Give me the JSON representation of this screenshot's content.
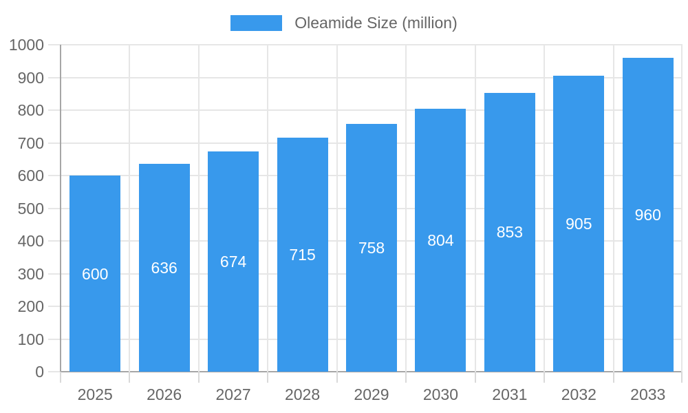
{
  "chart_data": {
    "type": "bar",
    "legend": {
      "label": "Oleamide Size (million)",
      "position": "top"
    },
    "categories": [
      "2025",
      "2026",
      "2027",
      "2028",
      "2029",
      "2030",
      "2031",
      "2032",
      "2033"
    ],
    "series": [
      {
        "name": "Oleamide Size (million)",
        "values": [
          600,
          636,
          674,
          715,
          758,
          804,
          853,
          905,
          960
        ]
      }
    ],
    "title": "",
    "xlabel": "",
    "ylabel": "",
    "ylim": [
      0,
      1000
    ],
    "ytick_step": 100,
    "yticks": [
      0,
      100,
      200,
      300,
      400,
      500,
      600,
      700,
      800,
      900,
      1000
    ],
    "grid": true,
    "value_labels": {
      "position": "inside-center",
      "color": "#ffffff"
    },
    "colors": {
      "bar": "#3899ec",
      "grid": "#e6e6e6",
      "axis": "#a6a6a6",
      "tick_mark": "#d9d9d9",
      "tick_text": "#666666",
      "legend_text": "#666666",
      "value_text": "#ffffff",
      "background": "#ffffff"
    }
  }
}
